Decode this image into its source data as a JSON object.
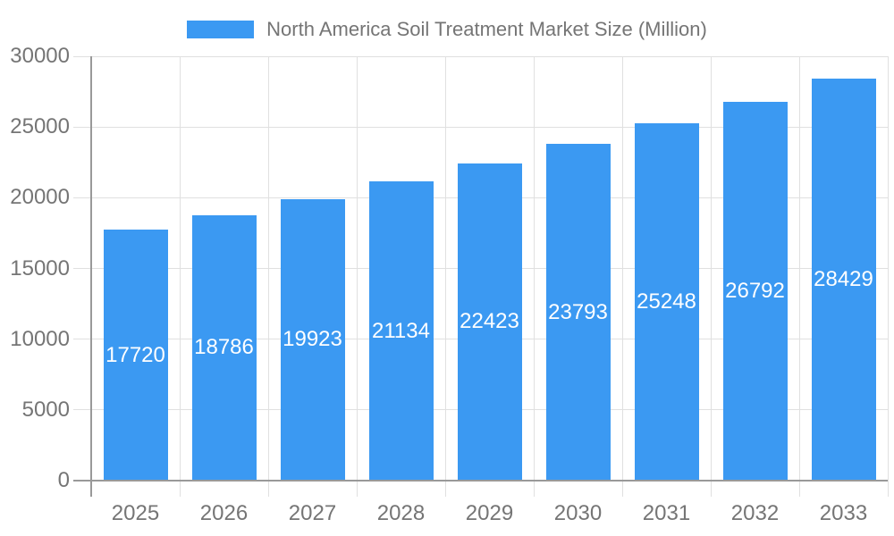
{
  "chart_data": {
    "type": "bar",
    "title": "North America Soil Treatment Market Size (Million)",
    "legend": [
      "North America Soil Treatment Market Size (Million)"
    ],
    "legend_position": "top",
    "categories": [
      "2025",
      "2026",
      "2027",
      "2028",
      "2029",
      "2030",
      "2031",
      "2032",
      "2033"
    ],
    "values": [
      17720,
      18786,
      19923,
      21134,
      22423,
      23793,
      25248,
      26792,
      28429
    ],
    "value_labels_inside_bars": true,
    "xlabel": "",
    "ylabel": "",
    "ylim": [
      0,
      30000
    ],
    "yticks": [
      0,
      5000,
      10000,
      15000,
      20000,
      25000,
      30000
    ],
    "grid": true,
    "colors": {
      "bar": "#3B99F2",
      "value_label": "#FFFFFF",
      "axis_text": "#757575",
      "gridline": "#E0E0E0",
      "axis_line": "#999999",
      "background": "#FFFFFF"
    }
  }
}
